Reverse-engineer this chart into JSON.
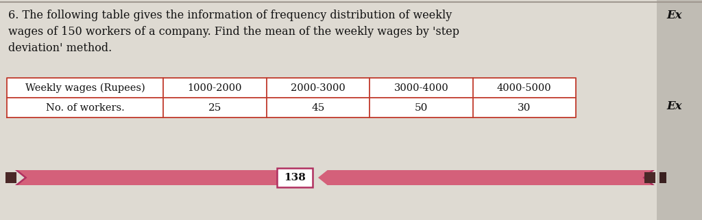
{
  "title_number": "6.",
  "title_text": "The following table gives the information of frequency distribution of weekly\nwages of 150 workers of a company. Find the mean of the weekly wages by 'step\ndeviation' method.",
  "side_label": "Ex",
  "table_headers": [
    "Weekly wages (Rupees)",
    "1000-2000",
    "2000-3000",
    "3000-4000",
    "4000-5000"
  ],
  "table_row_label": "No. of workers.",
  "table_values": [
    "25",
    "45",
    "50",
    "30"
  ],
  "page_number": "138",
  "bg_color": "#dedad2",
  "table_border_color": "#c0392b",
  "text_color": "#111111",
  "arrow_color_dark": "#b03060",
  "arrow_color_light": "#d4607a",
  "page_bg": "#c8c4bc",
  "side_bg": "#c0bcb4"
}
